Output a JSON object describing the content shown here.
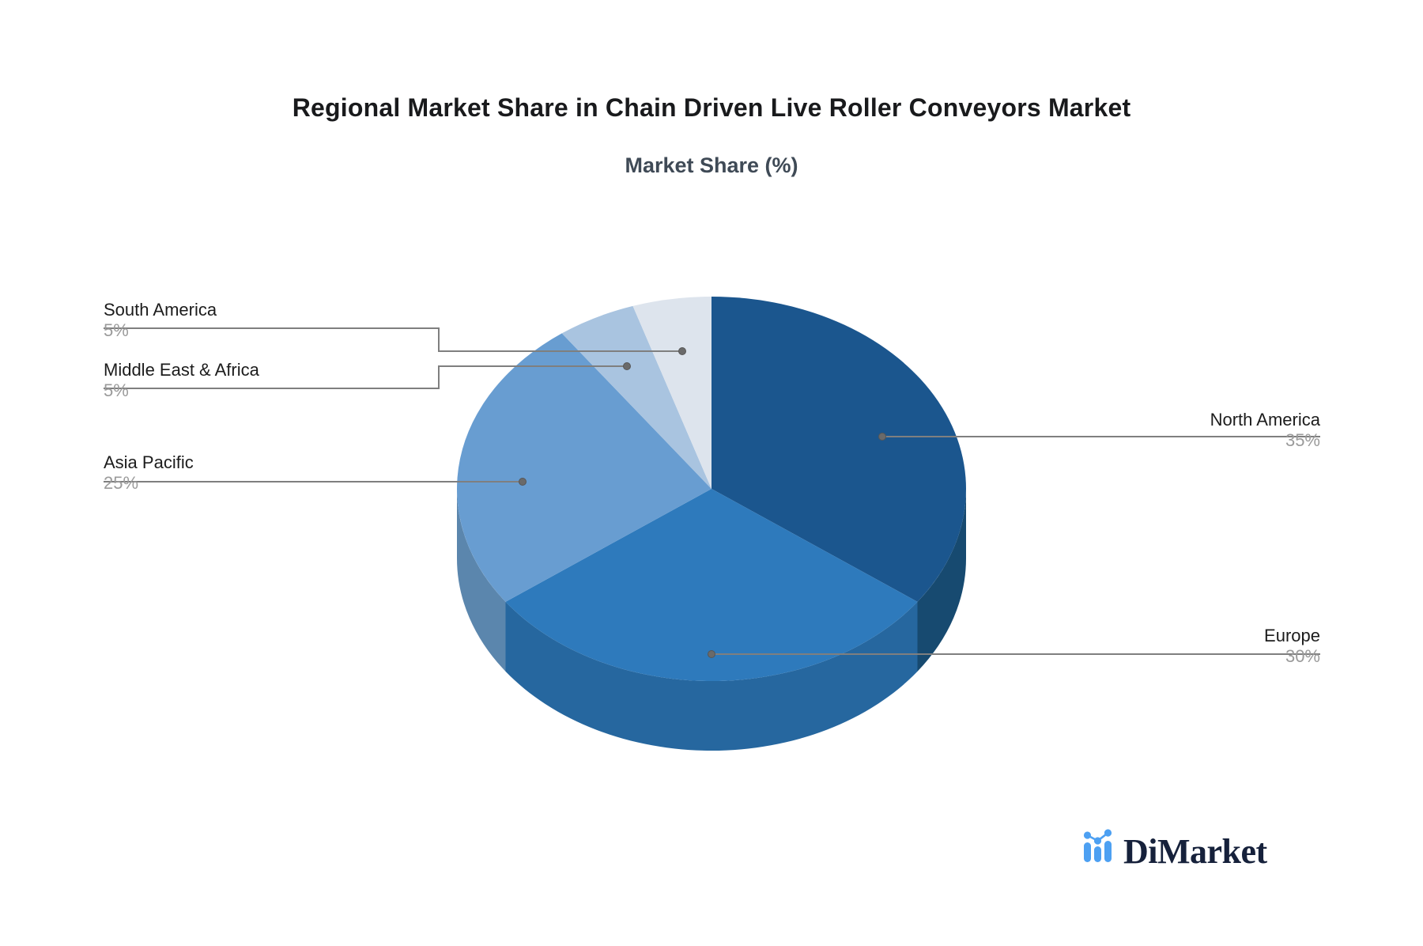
{
  "header": {
    "title": "Regional Market Share in Chain Driven Live Roller Conveyors Market",
    "subtitle": "Market Share (%)"
  },
  "chart_data": {
    "type": "pie",
    "style": "3d-pie",
    "title": "Regional Market Share in Chain Driven Live Roller Conveyors Market",
    "subtitle": "Market Share (%)",
    "unit": "%",
    "start_angle_deg": 90,
    "direction": "clockwise",
    "legend_position": "callout-labels",
    "categories": [
      "North America",
      "Europe",
      "Asia Pacific",
      "Middle East & Africa",
      "South America"
    ],
    "values": [
      35,
      30,
      25,
      5,
      5
    ],
    "slices": [
      {
        "label": "North America",
        "value": 35,
        "pct": "35%",
        "color": "#1b568e",
        "side_color": "#174a70"
      },
      {
        "label": "Europe",
        "value": 30,
        "pct": "30%",
        "color": "#2e7abc",
        "side_color": "#26679f"
      },
      {
        "label": "Asia Pacific",
        "value": 25,
        "pct": "25%",
        "color": "#689dd1",
        "side_color": "#5b86ad"
      },
      {
        "label": "Middle East & Africa",
        "value": 5,
        "pct": "5%",
        "color": "#a9c4e0",
        "side_color": "#8fb0d0"
      },
      {
        "label": "South America",
        "value": 5,
        "pct": "5%",
        "color": "#dde4ed",
        "side_color": "#c4cfdc"
      }
    ],
    "colors": {
      "label_text": "#1c1c1c",
      "pct_text": "#9b9b9b",
      "leader_line": "#7f7f7f",
      "leader_dot": "#6a6a6a",
      "title": "#191a1c",
      "subtitle": "#3f4a56"
    }
  },
  "branding": {
    "logo_text": "DiMarket",
    "logo_icon": "bar-line-chart-icon",
    "logo_text_color": "#16213b",
    "logo_icon_color": "#4da0f2"
  }
}
